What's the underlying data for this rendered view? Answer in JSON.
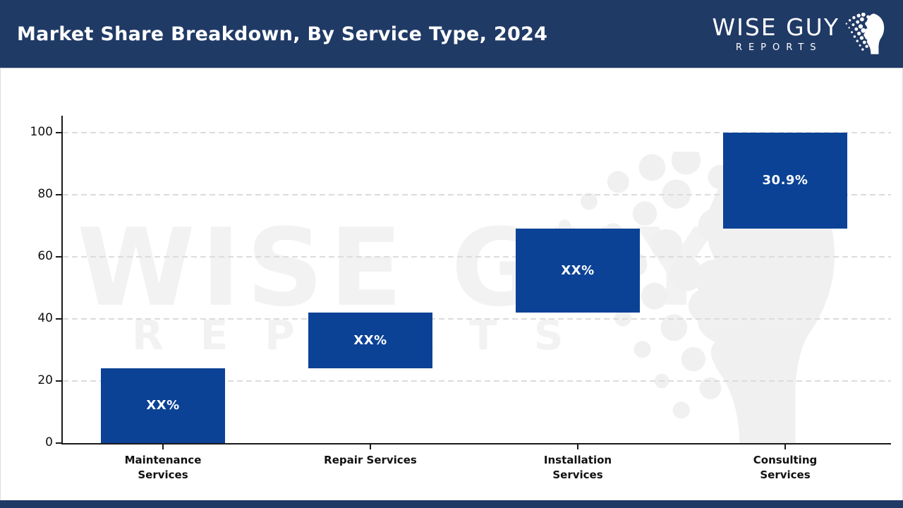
{
  "header": {
    "title": "Market Share Breakdown, By Service Type, 2024",
    "logo": {
      "name": "WISE GUY",
      "tagline": "REPORTS"
    }
  },
  "watermark": {
    "name": "WISE GUY",
    "tagline": "REPORTS"
  },
  "chart_data": {
    "type": "bar",
    "variant": "waterfall",
    "title": "Market Share Breakdown, By Service Type, 2024",
    "xlabel": "",
    "ylabel": "",
    "ylim": [
      0,
      105
    ],
    "yticks": [
      0,
      20,
      40,
      60,
      80,
      100
    ],
    "grid": "horizontal-dashed",
    "legend": "none",
    "bar_color": "#0b4296",
    "bars": [
      {
        "category": "Maintenance Services",
        "category_lines": [
          "Maintenance",
          "Services"
        ],
        "start": 0,
        "end": 24.2,
        "value": 24.2,
        "label": "XX%"
      },
      {
        "category": "Repair Services",
        "category_lines": [
          "Repair Services"
        ],
        "start": 24.2,
        "end": 42.1,
        "value": 17.9,
        "label": "XX%"
      },
      {
        "category": "Installation Services",
        "category_lines": [
          "Installation",
          "Services"
        ],
        "start": 42.1,
        "end": 69.1,
        "value": 27.0,
        "label": "XX%"
      },
      {
        "category": "Consulting Services",
        "category_lines": [
          "Consulting",
          "Services"
        ],
        "start": 69.1,
        "end": 100,
        "value": 30.9,
        "label": "30.9%"
      }
    ]
  },
  "colors": {
    "header_bg": "#203a66",
    "footer_bg": "#203a66",
    "bar": "#0b4296",
    "bar_label": "#ffffff",
    "grid": "#dcdcdc",
    "axis": "#1a1a1a",
    "tick_label": "#111111",
    "watermark": "#f2f2f2"
  }
}
